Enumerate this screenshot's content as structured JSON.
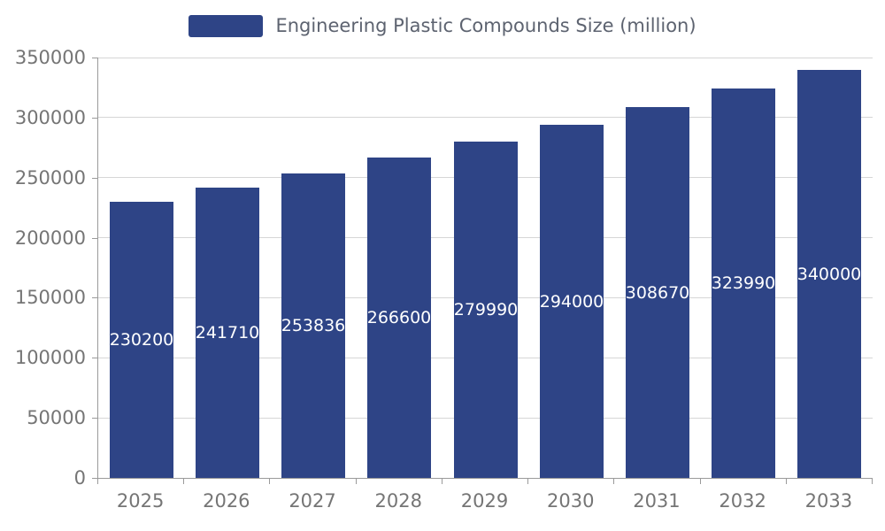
{
  "legend": {
    "title": "Engineering Plastic Compounds Size (million)"
  },
  "chart_data": {
    "type": "bar",
    "title": "Engineering Plastic Compounds Size (million)",
    "categories": [
      "2025",
      "2026",
      "2027",
      "2028",
      "2029",
      "2030",
      "2031",
      "2032",
      "2033"
    ],
    "values": [
      230200,
      241710,
      253836,
      266600,
      279990,
      294000,
      308670,
      323990,
      340000
    ],
    "xlabel": "",
    "ylabel": "",
    "ylim": [
      0,
      350000
    ],
    "yticks": [
      0,
      50000,
      100000,
      150000,
      200000,
      250000,
      300000,
      350000
    ],
    "grid": true,
    "legend_position": "top",
    "bar_color": "#2e4486",
    "value_label_color": "#ffffff",
    "axis_label_color": "#757575"
  }
}
